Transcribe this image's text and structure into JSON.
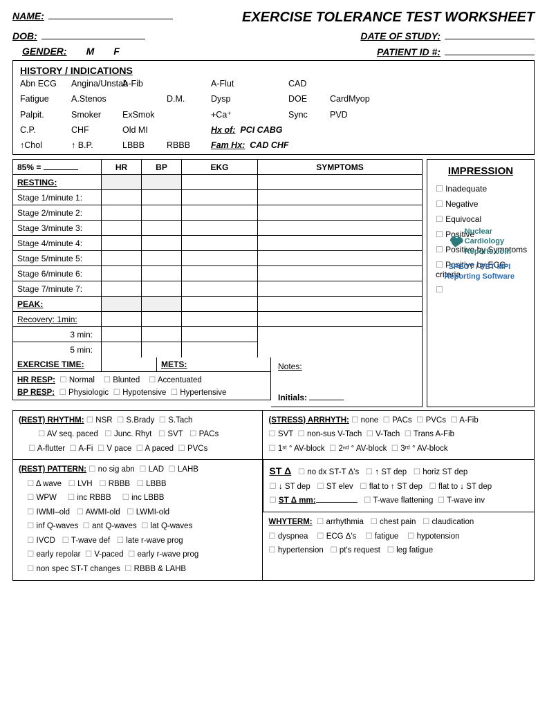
{
  "header": {
    "name_label": "NAME:",
    "dob_label": "DOB:",
    "gender_label": "GENDER:",
    "gender_m": "M",
    "gender_f": "F",
    "title": "EXERCISE TOLERANCE TEST WORKSHEET",
    "date_label": "DATE OF STUDY:",
    "pid_label": "PATIENT ID #:"
  },
  "history": {
    "heading": "HISTORY / INDICATIONS",
    "rows": [
      [
        "Abn ECG",
        "Angina/Unstab",
        "A-Fib",
        "",
        "A-Flut",
        "",
        "CAD",
        ""
      ],
      [
        "Fatigue",
        "A.Stenos",
        "",
        "D.M.",
        "Dysp",
        "",
        "DOE",
        "CardMyop"
      ],
      [
        "Palpit.",
        "Smoker",
        "ExSmok",
        "",
        "+Ca⁺",
        "",
        "Sync",
        "PVD"
      ],
      [
        "C.P.",
        "CHF",
        "Old MI",
        "",
        "",
        "",
        "",
        ""
      ],
      [
        "↑Chol",
        "↑ B.P.",
        "LBBB",
        "RBBB",
        "",
        "",
        "",
        ""
      ]
    ],
    "hx_of_label": "Hx of:",
    "hx_of_items": "PCI   CABG",
    "fam_hx_label": "Fam Hx:",
    "fam_hx_items": "CAD  CHF"
  },
  "logo": {
    "brand1": "Nuclear",
    "brand2": "Cardiology",
    "brand3": "Reports.com",
    "tag1": "SPECT / PET MPI",
    "tag2": "Reporting Software"
  },
  "tt": {
    "pct_label": "85% =",
    "cols": [
      "HR",
      "BP",
      "EKG",
      "SYMPTOMS"
    ],
    "resting": "RESTING:",
    "stages": [
      "Stage 1/minute 1:",
      "Stage 2/minute 2:",
      "Stage 3/minute 3:",
      "Stage 4/minute 4:",
      "Stage 5/minute 5:",
      "Stage 6/minute 6:",
      "Stage 7/minute 7:"
    ],
    "peak": "PEAK:",
    "recovery": "Recovery:   1min:",
    "rec3": "3 min:",
    "rec5": "5 min:"
  },
  "impression": {
    "heading": "IMPRESSION",
    "opts": [
      "Inadequate",
      "Negative",
      "Equivocal",
      "Positive",
      "Positive by Symptoms",
      "Positive by ECG criteria",
      ""
    ]
  },
  "exercise": {
    "time_label": "EXERCISE TIME:",
    "mets_label": "METS:",
    "hr_label": "HR RESP:",
    "hr_opts": [
      "Normal",
      "Blunted",
      "Accentuated"
    ],
    "bp_label": "BP RESP:",
    "bp_opts": [
      "Physiologic",
      "Hypotensive",
      "Hypertensive"
    ]
  },
  "notes": {
    "label": "Notes:",
    "initials": "Initials:"
  },
  "rest_rhythm": {
    "heading": "(REST) RHYTHM:",
    "l1": [
      "NSR",
      "S.Brady",
      "S.Tach"
    ],
    "l2": [
      "AV seq. paced",
      "Junc. Rhyt",
      "SVT",
      "PACs"
    ],
    "l3": [
      "A-flutter",
      "A-Fi",
      "V pace",
      "A paced",
      "PVCs"
    ]
  },
  "stress_arr": {
    "heading": "(STRESS) ARRHYTH:",
    "l1": [
      "none",
      "PACs",
      "PVCs",
      "A-Fib"
    ],
    "l2": [
      "SVT",
      "non-sus V-Tach",
      "V-Tach",
      "Trans A-Fib"
    ],
    "l3": [
      "1ˢᵗ ° AV-block",
      "2ⁿᵈ ° AV-block",
      "3ʳᵈ ° AV-block"
    ]
  },
  "rest_pattern": {
    "heading": "(REST) PATTERN:",
    "l1": [
      "no sig abn",
      "LAD",
      "LAHB"
    ],
    "l2": [
      "Δ wave",
      "LVH",
      "RBBB",
      "LBBB"
    ],
    "l3": [
      "WPW",
      "inc RBBB",
      "inc LBBB"
    ],
    "l4": [
      "IWMI–old",
      "AWMI-old",
      "LWMI-old"
    ],
    "l5": [
      "inf Q-waves",
      "ant Q-waves",
      "lat Q-waves"
    ],
    "l6": [
      "IVCD",
      "T-wave def",
      "late r-wave prog"
    ],
    "l7": [
      "early repolar",
      "V-paced",
      "early r-wave prog"
    ],
    "l8": [
      "non spec  ST-T changes",
      "RBBB & LAHB"
    ]
  },
  "st_delta": {
    "heading": "ST Δ",
    "l1": [
      "no dx ST-T Δ's",
      "↑ ST dep",
      "horiz ST dep"
    ],
    "l2": [
      "↓ ST dep",
      "ST elev",
      "flat to ↑ ST dep",
      "flat to ↓ ST dep"
    ],
    "mm_label": "ST Δ mm:",
    "l3": [
      "T-wave flattening",
      "T-wave inv"
    ]
  },
  "whyterm": {
    "heading": "WHYTERM:",
    "l1": [
      "arrhythmia",
      "chest pain",
      "claudication"
    ],
    "l2": [
      "dyspnea",
      "ECG  Δ's",
      "fatigue",
      "hypotension"
    ],
    "l3": [
      "hypertension",
      "pt's request",
      "leg fatigue"
    ]
  }
}
